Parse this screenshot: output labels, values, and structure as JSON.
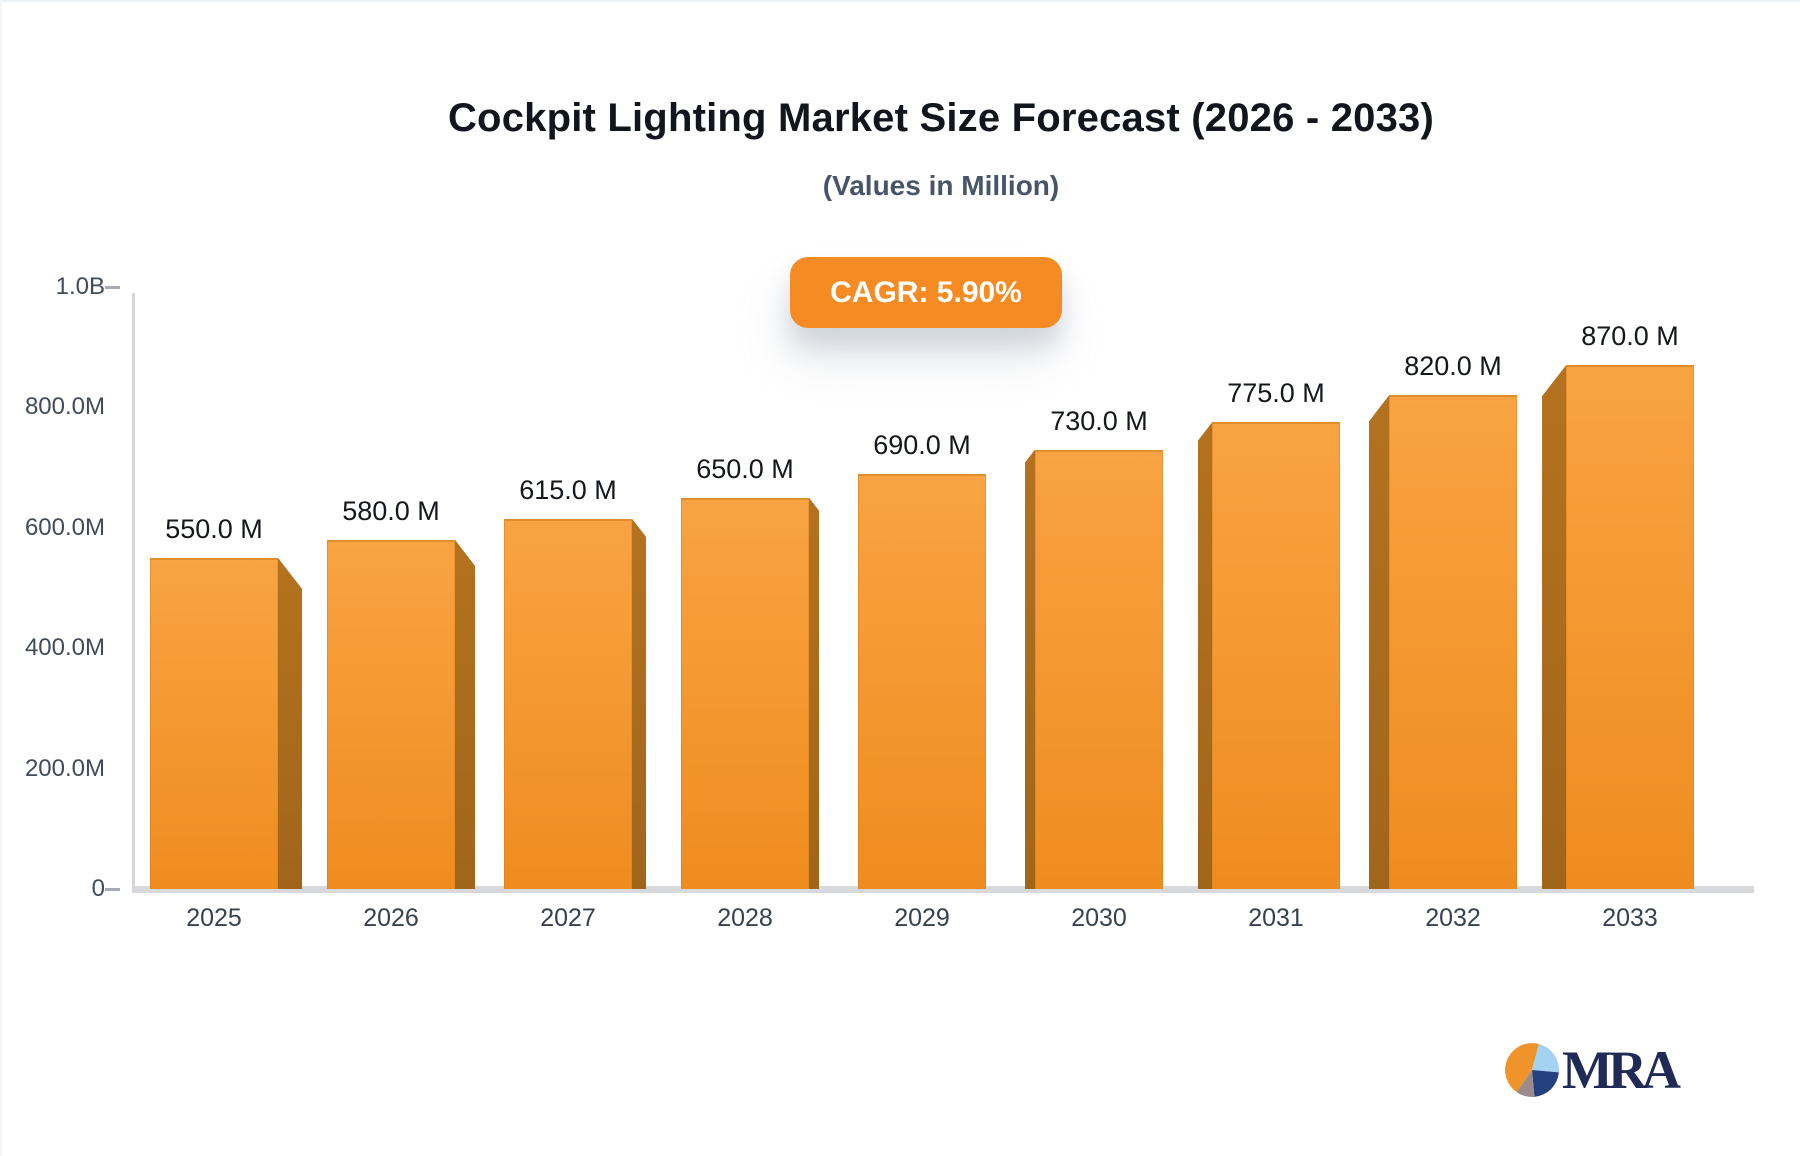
{
  "chart_data": {
    "type": "bar",
    "title": "Cockpit Lighting Market Size Forecast (2026 - 2033)",
    "subtitle": "(Values in Million)",
    "badge_label": "CAGR: 5.90%",
    "categories": [
      "2025",
      "2026",
      "2027",
      "2028",
      "2029",
      "2030",
      "2031",
      "2032",
      "2033"
    ],
    "values": [
      550,
      580,
      615,
      650,
      690,
      730,
      775,
      820,
      870
    ],
    "data_labels": [
      "550.0 M",
      "580.0 M",
      "615.0 M",
      "650.0 M",
      "690.0 M",
      "730.0 M",
      "775.0 M",
      "820.0 M",
      "870.0 M"
    ],
    "xlabel": "",
    "ylabel": "",
    "ylim": [
      0,
      1000
    ],
    "y_ticks": [
      {
        "label": "1.0B",
        "value": 1000
      },
      {
        "label": "800.0M",
        "value": 800
      },
      {
        "label": "600.0M",
        "value": 600
      },
      {
        "label": "400.0M",
        "value": 400
      },
      {
        "label": "200.0M",
        "value": 200
      },
      {
        "label": "0",
        "value": 0
      }
    ],
    "grid": false,
    "legend": null
  },
  "logo": {
    "text": "MRA"
  },
  "colors": {
    "bar_face_top": "#f9a342",
    "bar_face_bottom": "#ef8c1f",
    "bar_side_top": "#b4721f",
    "bar_side_bottom": "#a1651a",
    "badge_bg": "#f68b24",
    "badge_text": "#ffffff",
    "title_text": "#12151c",
    "subtitle_text": "#475569",
    "axis_text": "#414b5a",
    "value_text": "#14171c",
    "axis_line": "#d5d7dd",
    "baseline": "#d8d9dd",
    "tick": "#a7abb5",
    "logo_navy": "#1f2a56",
    "logo_orange": "#f0932a",
    "logo_lightblue": "#a3d2f2",
    "logo_gray": "#9c8b8b"
  }
}
